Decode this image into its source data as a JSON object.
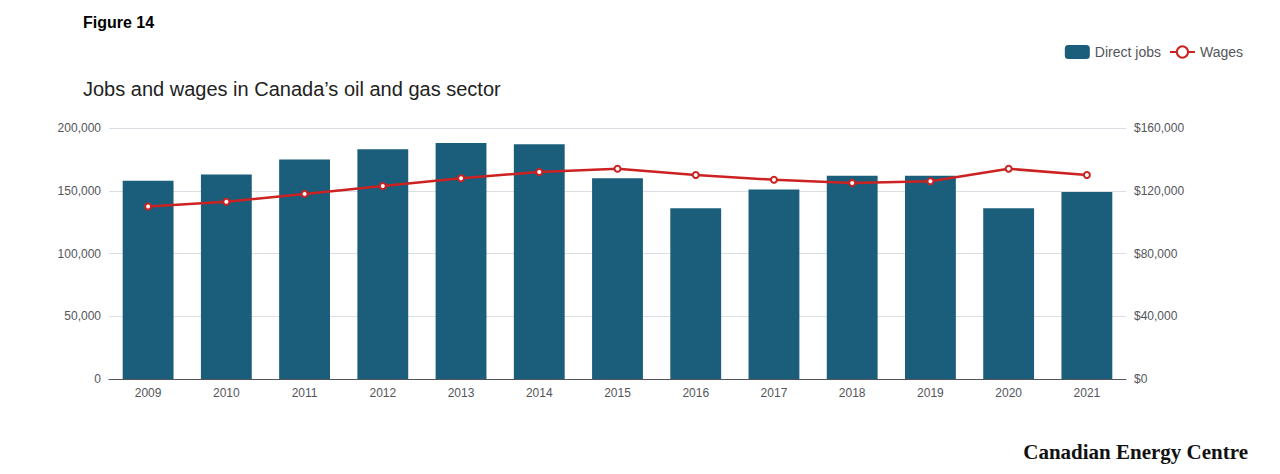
{
  "chart_data": {
    "type": "bar",
    "title": "Jobs and wages in Canada’s oil and gas sector",
    "annotations": [
      "Figure 14",
      "Canadian Energy Centre"
    ],
    "categories": [
      "2009",
      "2010",
      "2011",
      "2012",
      "2013",
      "2014",
      "2015",
      "2016",
      "2017",
      "2018",
      "2019",
      "2020",
      "2021"
    ],
    "series": [
      {
        "name": "Direct jobs",
        "type": "bar",
        "color": "#1b5e7b",
        "values": [
          158000,
          163000,
          175000,
          183000,
          188000,
          187000,
          160000,
          136000,
          151000,
          162000,
          162000,
          136000,
          149000
        ]
      },
      {
        "name": "Wages",
        "type": "line",
        "color": "#cc2222",
        "axis": "y2",
        "values": [
          110000,
          113000,
          118000,
          123000,
          128000,
          132000,
          134000,
          130000,
          127000,
          125000,
          126000,
          134000,
          130000
        ]
      }
    ],
    "ylim": [
      0,
      200000
    ],
    "yticks": [
      0,
      {
        "value": 50000,
        "label": "50,000"
      },
      {
        "value": 100000,
        "label": "100,000"
      },
      {
        "value": 150000,
        "label": "150,000"
      },
      {
        "value": 200000,
        "label": "200,000"
      }
    ],
    "y2lim": [
      0,
      160000
    ],
    "y2ticks": [
      {
        "value": 0,
        "label": "$0"
      },
      {
        "value": 40000,
        "label": "$40,000"
      },
      {
        "value": 80000,
        "label": "$80,000"
      },
      {
        "value": 120000,
        "label": "$120,000"
      },
      {
        "value": 160000,
        "label": "$160,000"
      }
    ],
    "grid": true,
    "legend": "upper right"
  }
}
